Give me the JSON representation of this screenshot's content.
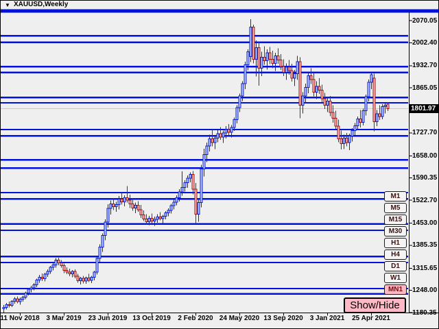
{
  "header": {
    "symbol_period": "XAUUSD,Weekly",
    "dropdown_icon": "▼"
  },
  "colors": {
    "background": "#efefef",
    "level_line": "#0010e0",
    "bull_stroke": "#0c1fd0",
    "bull_fill": "#bccaf4",
    "bear_stroke": "#a11212",
    "bear_fill": "#f0c2c2",
    "current_price_line": "#c9c9c9",
    "current_price_bg": "#000000",
    "current_price_fg": "#ffffff",
    "axis_line": "#000000",
    "button_bg": "#f4f4f4",
    "button_active_bg": "#ffb9c6"
  },
  "price_axis": {
    "ticks": [
      "2070.05",
      "2002.40",
      "1932.70",
      "1865.05",
      "1727.70",
      "1658.00",
      "1590.35",
      "1522.70",
      "1453.00",
      "1385.35",
      "1315.65",
      "1248.00",
      "1180.35"
    ],
    "current_price": "1801.97"
  },
  "date_axis": {
    "ticks": [
      {
        "label": "11 Nov 2018",
        "week_index": 6
      },
      {
        "label": "3 Mar 2019",
        "week_index": 22
      },
      {
        "label": "23 Jun 2019",
        "week_index": 38
      },
      {
        "label": "13 Oct 2019",
        "week_index": 54
      },
      {
        "label": "2 Feb 2020",
        "week_index": 70
      },
      {
        "label": "24 May 2020",
        "week_index": 86
      },
      {
        "label": "13 Sep 2020",
        "week_index": 102
      },
      {
        "label": "3 Jan 2021",
        "week_index": 118
      },
      {
        "label": "25 Apr 2021",
        "week_index": 134
      }
    ]
  },
  "timeframe_buttons": [
    {
      "label": "M1",
      "active": false
    },
    {
      "label": "M5",
      "active": false
    },
    {
      "label": "M15",
      "active": false
    },
    {
      "label": "M30",
      "active": false
    },
    {
      "label": "H1",
      "active": false
    },
    {
      "label": "H4",
      "active": false
    },
    {
      "label": "D1",
      "active": false
    },
    {
      "label": "W1",
      "active": false
    },
    {
      "label": "MN1",
      "active": true
    }
  ],
  "show_hide_button": {
    "label": "Show/Hide"
  },
  "chart_data": {
    "type": "candlestick",
    "title": "XAUUSD,Weekly",
    "symbol": "XAUUSD",
    "timeframe": "Weekly",
    "ylim": [
      1160,
      2095
    ],
    "grid": false,
    "current_price": 1801.97,
    "level_pairs": [
      [
        2101.5,
        2096.5
      ],
      [
        2024.0,
        2003.5
      ],
      [
        1930.0,
        1911.5
      ],
      [
        1836.0,
        1819.5
      ],
      [
        1738.0,
        1719.0
      ],
      [
        1646.0,
        1621.0
      ],
      [
        1546.0,
        1527.0
      ],
      [
        1450.0,
        1431.0
      ],
      [
        1351.5,
        1333.0
      ],
      [
        1253.5,
        1237.0
      ]
    ],
    "candles_format": [
      "open",
      "high",
      "low",
      "close"
    ],
    "candles": [
      [
        1192,
        1204,
        1181,
        1196
      ],
      [
        1196,
        1210,
        1190,
        1205
      ],
      [
        1205,
        1214,
        1196,
        1202
      ],
      [
        1202,
        1218,
        1197,
        1215
      ],
      [
        1215,
        1228,
        1208,
        1222
      ],
      [
        1222,
        1230,
        1209,
        1214
      ],
      [
        1214,
        1226,
        1205,
        1221
      ],
      [
        1221,
        1232,
        1214,
        1228
      ],
      [
        1228,
        1244,
        1221,
        1240
      ],
      [
        1240,
        1256,
        1233,
        1251
      ],
      [
        1251,
        1262,
        1242,
        1256
      ],
      [
        1256,
        1270,
        1248,
        1265
      ],
      [
        1265,
        1284,
        1258,
        1280
      ],
      [
        1280,
        1295,
        1271,
        1288
      ],
      [
        1288,
        1300,
        1277,
        1284
      ],
      [
        1284,
        1302,
        1276,
        1297
      ],
      [
        1297,
        1312,
        1289,
        1306
      ],
      [
        1306,
        1322,
        1298,
        1318
      ],
      [
        1318,
        1332,
        1309,
        1326
      ],
      [
        1326,
        1346,
        1317,
        1340
      ],
      [
        1340,
        1348,
        1325,
        1332
      ],
      [
        1332,
        1340,
        1317,
        1324
      ],
      [
        1324,
        1330,
        1301,
        1309
      ],
      [
        1309,
        1318,
        1297,
        1304
      ],
      [
        1304,
        1314,
        1291,
        1298
      ],
      [
        1298,
        1310,
        1288,
        1306
      ],
      [
        1306,
        1312,
        1285,
        1291
      ],
      [
        1291,
        1298,
        1271,
        1278
      ],
      [
        1278,
        1289,
        1266,
        1285
      ],
      [
        1285,
        1292,
        1269,
        1277
      ],
      [
        1277,
        1290,
        1268,
        1286
      ],
      [
        1286,
        1298,
        1273,
        1279
      ],
      [
        1279,
        1292,
        1270,
        1288
      ],
      [
        1288,
        1308,
        1279,
        1304
      ],
      [
        1304,
        1352,
        1296,
        1345
      ],
      [
        1345,
        1388,
        1335,
        1380
      ],
      [
        1380,
        1422,
        1365,
        1415
      ],
      [
        1415,
        1465,
        1401,
        1456
      ],
      [
        1456,
        1510,
        1439,
        1498
      ],
      [
        1498,
        1522,
        1479,
        1512
      ],
      [
        1512,
        1528,
        1493,
        1503
      ],
      [
        1503,
        1518,
        1487,
        1509
      ],
      [
        1509,
        1535,
        1495,
        1526
      ],
      [
        1526,
        1546,
        1509,
        1518
      ],
      [
        1518,
        1538,
        1504,
        1530
      ],
      [
        1530,
        1566,
        1516,
        1523
      ],
      [
        1523,
        1540,
        1499,
        1512
      ],
      [
        1512,
        1528,
        1491,
        1499
      ],
      [
        1499,
        1516,
        1483,
        1507
      ],
      [
        1507,
        1520,
        1487,
        1494
      ],
      [
        1494,
        1508,
        1469,
        1478
      ],
      [
        1478,
        1492,
        1459,
        1466
      ],
      [
        1466,
        1480,
        1449,
        1457
      ],
      [
        1457,
        1475,
        1447,
        1468
      ],
      [
        1468,
        1482,
        1451,
        1459
      ],
      [
        1459,
        1473,
        1445,
        1464
      ],
      [
        1464,
        1480,
        1454,
        1472
      ],
      [
        1472,
        1486,
        1461,
        1467
      ],
      [
        1467,
        1478,
        1451,
        1474
      ],
      [
        1474,
        1490,
        1465,
        1484
      ],
      [
        1484,
        1498,
        1474,
        1492
      ],
      [
        1492,
        1512,
        1482,
        1506
      ],
      [
        1506,
        1525,
        1495,
        1517
      ],
      [
        1517,
        1538,
        1507,
        1530
      ],
      [
        1530,
        1556,
        1519,
        1548
      ],
      [
        1548,
        1611,
        1537,
        1562
      ],
      [
        1562,
        1584,
        1549,
        1576
      ],
      [
        1576,
        1598,
        1561,
        1590
      ],
      [
        1590,
        1608,
        1577,
        1601
      ],
      [
        1601,
        1612,
        1541,
        1556
      ],
      [
        1556,
        1575,
        1451,
        1480
      ],
      [
        1480,
        1528,
        1457,
        1516
      ],
      [
        1516,
        1630,
        1501,
        1618
      ],
      [
        1618,
        1680,
        1595,
        1662
      ],
      [
        1662,
        1698,
        1639,
        1688
      ],
      [
        1688,
        1722,
        1671,
        1710
      ],
      [
        1710,
        1738,
        1687,
        1698
      ],
      [
        1698,
        1720,
        1679,
        1712
      ],
      [
        1712,
        1736,
        1699,
        1726
      ],
      [
        1726,
        1745,
        1707,
        1715
      ],
      [
        1715,
        1735,
        1697,
        1728
      ],
      [
        1728,
        1748,
        1711,
        1738
      ],
      [
        1738,
        1755,
        1719,
        1730
      ],
      [
        1730,
        1752,
        1714,
        1744
      ],
      [
        1744,
        1775,
        1734,
        1768
      ],
      [
        1768,
        1812,
        1757,
        1805
      ],
      [
        1805,
        1848,
        1791,
        1840
      ],
      [
        1840,
        1885,
        1825,
        1878
      ],
      [
        1878,
        1945,
        1861,
        1935
      ],
      [
        1935,
        1982,
        1919,
        1975
      ],
      [
        1960,
        2074,
        1944,
        2050
      ],
      [
        2050,
        2058,
        1940,
        1952
      ],
      [
        1952,
        2010,
        1900,
        1988
      ],
      [
        1988,
        2005,
        1872,
        1925
      ],
      [
        1925,
        1975,
        1901,
        1958
      ],
      [
        1958,
        1992,
        1935,
        1948
      ],
      [
        1948,
        1982,
        1921,
        1972
      ],
      [
        1972,
        1990,
        1937,
        1952
      ],
      [
        1952,
        1978,
        1925,
        1940
      ],
      [
        1940,
        1972,
        1917,
        1962
      ],
      [
        1962,
        1985,
        1939,
        1950
      ],
      [
        1950,
        1968,
        1920,
        1930
      ],
      [
        1930,
        1952,
        1901,
        1912
      ],
      [
        1912,
        1940,
        1889,
        1928
      ],
      [
        1928,
        1950,
        1905,
        1918
      ],
      [
        1918,
        1938,
        1884,
        1895
      ],
      [
        1895,
        1920,
        1871,
        1908
      ],
      [
        1908,
        1962,
        1889,
        1945
      ],
      [
        1945,
        1958,
        1772,
        1812
      ],
      [
        1812,
        1852,
        1787,
        1840
      ],
      [
        1840,
        1878,
        1819,
        1866
      ],
      [
        1866,
        1912,
        1849,
        1902
      ],
      [
        1902,
        1925,
        1877,
        1890
      ],
      [
        1890,
        1910,
        1839,
        1852
      ],
      [
        1852,
        1885,
        1831,
        1870
      ],
      [
        1870,
        1895,
        1847,
        1858
      ],
      [
        1858,
        1875,
        1821,
        1832
      ],
      [
        1832,
        1850,
        1801,
        1812
      ],
      [
        1812,
        1838,
        1791,
        1825
      ],
      [
        1825,
        1840,
        1779,
        1790
      ],
      [
        1790,
        1812,
        1759,
        1772
      ],
      [
        1772,
        1795,
        1739,
        1748
      ],
      [
        1748,
        1768,
        1699,
        1710
      ],
      [
        1710,
        1735,
        1677,
        1695
      ],
      [
        1695,
        1722,
        1679,
        1712
      ],
      [
        1712,
        1728,
        1687,
        1698
      ],
      [
        1698,
        1726,
        1675,
        1718
      ],
      [
        1718,
        1742,
        1701,
        1735
      ],
      [
        1735,
        1758,
        1721,
        1750
      ],
      [
        1750,
        1778,
        1737,
        1770
      ],
      [
        1770,
        1798,
        1744,
        1760
      ],
      [
        1760,
        1802,
        1751,
        1795
      ],
      [
        1795,
        1845,
        1781,
        1838
      ],
      [
        1838,
        1890,
        1824,
        1882
      ],
      [
        1882,
        1912,
        1861,
        1905
      ],
      [
        1895,
        1908,
        1733,
        1762
      ],
      [
        1762,
        1798,
        1749,
        1786
      ],
      [
        1786,
        1812,
        1767,
        1778
      ],
      [
        1778,
        1815,
        1769,
        1808
      ],
      [
        1808,
        1818,
        1787,
        1812
      ],
      [
        1815,
        1822,
        1794,
        1802
      ]
    ]
  }
}
